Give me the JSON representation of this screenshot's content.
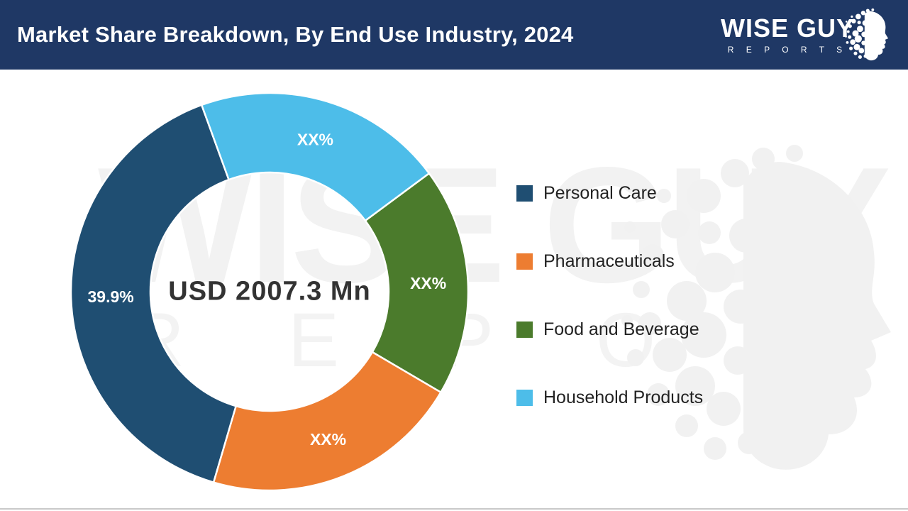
{
  "header": {
    "title": "Market Share Breakdown, By End Use Industry, 2024",
    "logo": {
      "line1": "WISE GUY",
      "line2": "R E P O R T S"
    }
  },
  "watermark": {
    "line1": "WISE GUY",
    "line2": "R E P O R T S"
  },
  "chart_data": {
    "type": "donut",
    "title": "Market Share Breakdown, By End Use Industry, 2024",
    "center_label": "USD 2007.3 Mn",
    "start_angle_deg": 110,
    "direction": "counterclockwise",
    "inner_radius_ratio": 0.6,
    "legend_position": "right",
    "series": [
      {
        "name": "Personal Care",
        "value_pct": 39.9,
        "display_label": "39.9%",
        "color": "#1f4e72"
      },
      {
        "name": "Pharmaceuticals",
        "value_pct": 21.1,
        "display_label": "XX%",
        "color": "#ed7d31"
      },
      {
        "name": "Food and Beverage",
        "value_pct": 18.6,
        "display_label": "XX%",
        "color": "#4b7b2c"
      },
      {
        "name": "Household Products",
        "value_pct": 20.4,
        "display_label": "XX%",
        "color": "#4dbde9"
      }
    ]
  },
  "colors": {
    "header_bg": "#1f3865",
    "center_text": "#333333",
    "slice_label_text": "#ffffff",
    "legend_text": "#222222",
    "watermark": "#f2f2f2",
    "bottom_rule": "#c9c9c9"
  }
}
